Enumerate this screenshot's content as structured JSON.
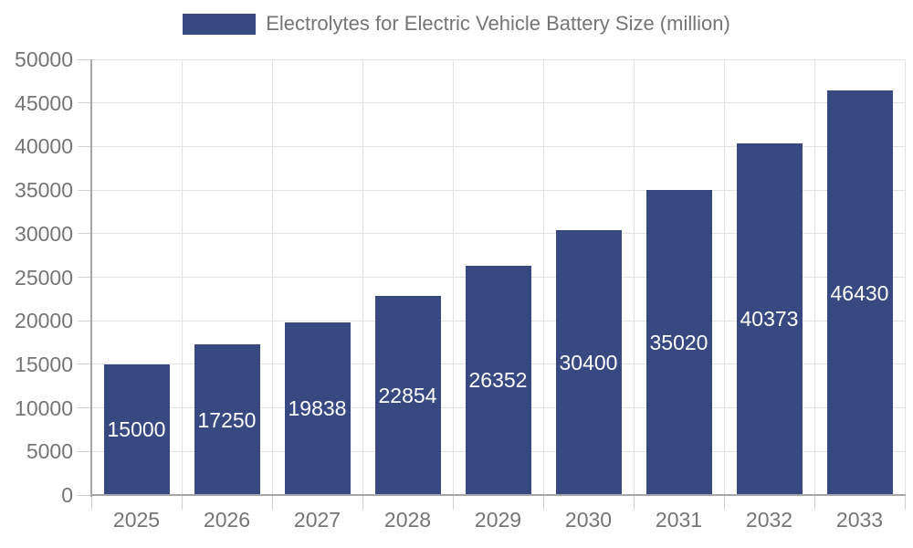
{
  "chart_data": {
    "type": "bar",
    "title": "Electrolytes for Electric Vehicle Battery Size (million)",
    "series_name": "Electrolytes for Electric Vehicle Battery Size (million)",
    "categories": [
      "2025",
      "2026",
      "2027",
      "2028",
      "2029",
      "2030",
      "2031",
      "2032",
      "2033"
    ],
    "values": [
      15000,
      17250,
      19838,
      22854,
      26352,
      30400,
      35020,
      40373,
      46430
    ],
    "xlabel": "",
    "ylabel": "",
    "ylim": [
      0,
      50000
    ],
    "ytick_step": 5000,
    "grid": true,
    "legend_position": "top-center",
    "value_label_position": "inside-center",
    "colors": {
      "bar": "#374980",
      "value_label": "#FFFFFF",
      "axis_label": "#757575",
      "legend_text": "#757575",
      "gridline": "#E2E2E2",
      "axis_line": "#A6A6A6",
      "tick": "#CFCFCF",
      "background": "#FFFFFF"
    }
  }
}
